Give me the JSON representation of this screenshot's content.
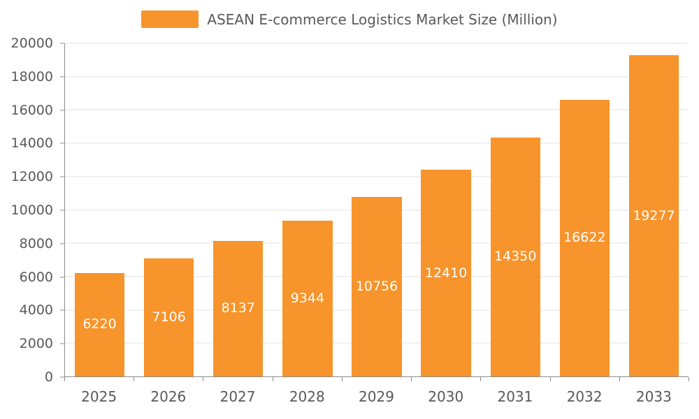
{
  "chart_data": {
    "type": "bar",
    "title": "ASEAN E-commerce Logistics Market Size (Million)",
    "categories": [
      "2025",
      "2026",
      "2027",
      "2028",
      "2029",
      "2030",
      "2031",
      "2032",
      "2033"
    ],
    "values": [
      6220,
      7106,
      8137,
      9344,
      10756,
      12410,
      14350,
      16622,
      19277
    ],
    "xlabel": "",
    "ylabel": "",
    "ylim": [
      0,
      20000
    ],
    "ytick_step": 2000,
    "ytick_labels": [
      "0",
      "2000",
      "4000",
      "6000",
      "8000",
      "10000",
      "12000",
      "14000",
      "16000",
      "18000",
      "20000"
    ],
    "grid": true,
    "legend_position": "top-center",
    "colors": {
      "bar": "#F7942C",
      "bar_value_label": "#FFFFFF",
      "axis_text": "#595959",
      "gridline": "#E3E3E3",
      "axis_line": "#8C8C8C",
      "background": "#FFFFFF"
    }
  }
}
